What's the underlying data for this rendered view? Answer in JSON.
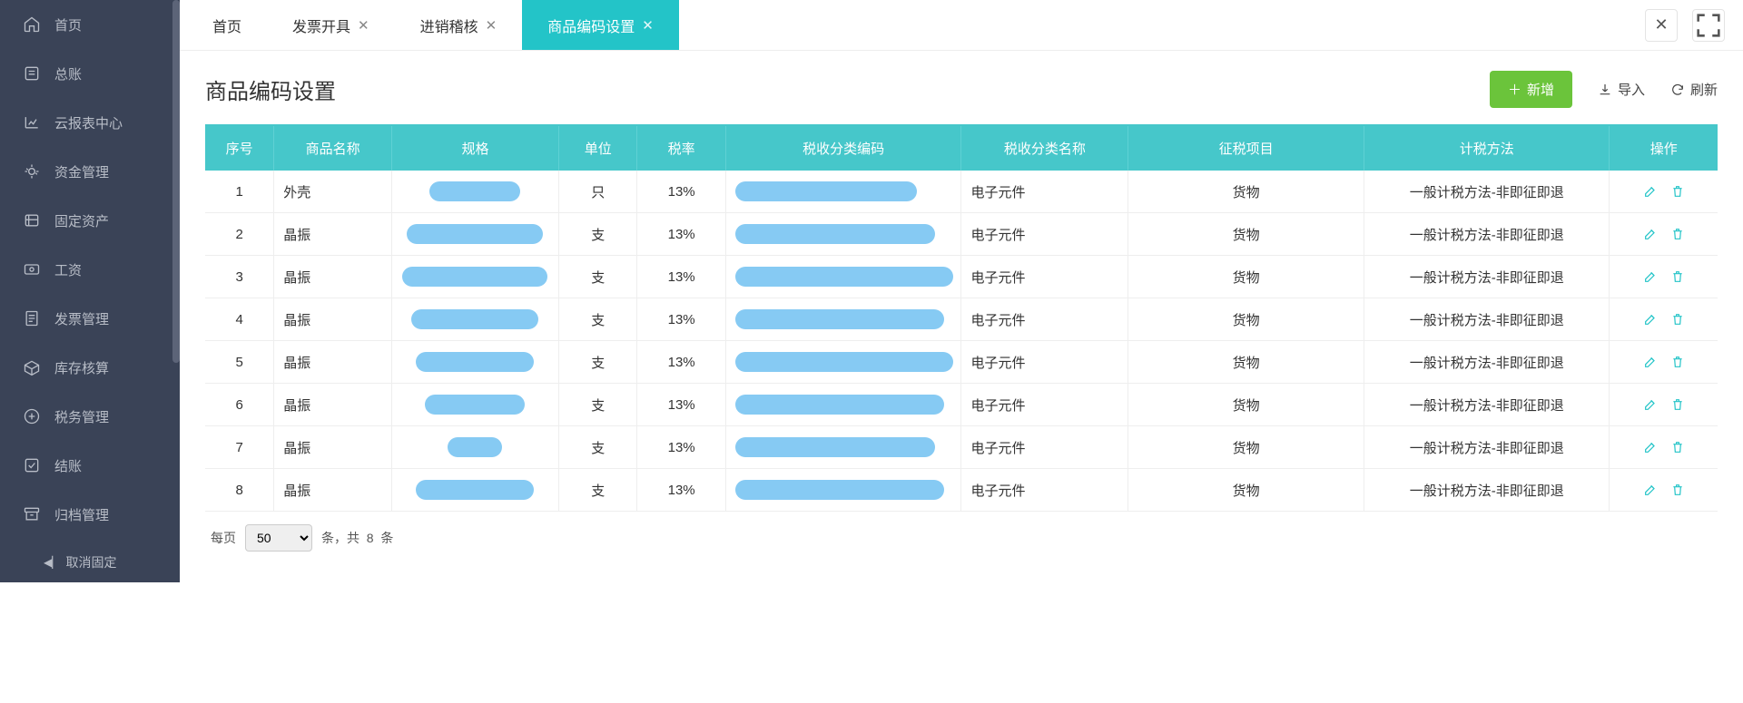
{
  "sidebar": {
    "items": [
      {
        "label": "首页",
        "icon": "home"
      },
      {
        "label": "总账",
        "icon": "ledger"
      },
      {
        "label": "云报表中心",
        "icon": "report"
      },
      {
        "label": "资金管理",
        "icon": "fund"
      },
      {
        "label": "固定资产",
        "icon": "asset"
      },
      {
        "label": "工资",
        "icon": "salary"
      },
      {
        "label": "发票管理",
        "icon": "invoice"
      },
      {
        "label": "库存核算",
        "icon": "stock"
      },
      {
        "label": "税务管理",
        "icon": "tax"
      },
      {
        "label": "结账",
        "icon": "close"
      },
      {
        "label": "归档管理",
        "icon": "archive"
      }
    ],
    "pin_label": "取消固定"
  },
  "tabs": {
    "items": [
      {
        "label": "首页",
        "closable": false
      },
      {
        "label": "发票开具",
        "closable": true
      },
      {
        "label": "进销稽核",
        "closable": true
      },
      {
        "label": "商品编码设置",
        "closable": true,
        "active": true
      }
    ]
  },
  "page": {
    "title": "商品编码设置",
    "actions": {
      "add": "新增",
      "import": "导入",
      "refresh": "刷新"
    }
  },
  "table": {
    "columns": [
      "序号",
      "商品名称",
      "规格",
      "单位",
      "税率",
      "税收分类编码",
      "税收分类名称",
      "征税项目",
      "计税方法",
      "操作"
    ],
    "col_widths": [
      "70px",
      "120px",
      "170px",
      "80px",
      "90px",
      "240px",
      "170px",
      "240px",
      "250px",
      "110px"
    ],
    "header_bg": "#46c7ca",
    "header_fg": "#ffffff",
    "redact_color": "#86caf3",
    "rows": [
      {
        "seq": "1",
        "name": "外壳",
        "spec_redact_w": 100,
        "unit": "只",
        "rate": "13%",
        "code_redact_w": 200,
        "catname": "电子元件",
        "taxitem": "货物",
        "method": "一般计税方法-非即征即退"
      },
      {
        "seq": "2",
        "name": "晶振",
        "spec_redact_w": 150,
        "unit": "支",
        "rate": "13%",
        "code_redact_w": 220,
        "catname": "电子元件",
        "taxitem": "货物",
        "method": "一般计税方法-非即征即退"
      },
      {
        "seq": "3",
        "name": "晶振",
        "spec_redact_w": 160,
        "unit": "支",
        "rate": "13%",
        "code_redact_w": 240,
        "catname": "电子元件",
        "taxitem": "货物",
        "method": "一般计税方法-非即征即退"
      },
      {
        "seq": "4",
        "name": "晶振",
        "spec_redact_w": 140,
        "unit": "支",
        "rate": "13%",
        "code_redact_w": 230,
        "catname": "电子元件",
        "taxitem": "货物",
        "method": "一般计税方法-非即征即退"
      },
      {
        "seq": "5",
        "name": "晶振",
        "spec_redact_w": 130,
        "unit": "支",
        "rate": "13%",
        "code_redact_w": 240,
        "catname": "电子元件",
        "taxitem": "货物",
        "method": "一般计税方法-非即征即退"
      },
      {
        "seq": "6",
        "name": "晶振",
        "spec_redact_w": 110,
        "unit": "支",
        "rate": "13%",
        "code_redact_w": 230,
        "catname": "电子元件",
        "taxitem": "货物",
        "method": "一般计税方法-非即征即退"
      },
      {
        "seq": "7",
        "name": "晶振",
        "spec_redact_w": 60,
        "unit": "支",
        "rate": "13%",
        "code_redact_w": 220,
        "catname": "电子元件",
        "taxitem": "货物",
        "method": "一般计税方法-非即征即退"
      },
      {
        "seq": "8",
        "name": "晶振",
        "spec_redact_w": 130,
        "unit": "支",
        "rate": "13%",
        "code_redact_w": 230,
        "catname": "电子元件",
        "taxitem": "货物",
        "method": "一般计税方法-非即征即退"
      }
    ]
  },
  "pager": {
    "per_page_label": "每页",
    "page_size": "50",
    "total_prefix": "条，共",
    "total": "8",
    "total_suffix": "条"
  }
}
